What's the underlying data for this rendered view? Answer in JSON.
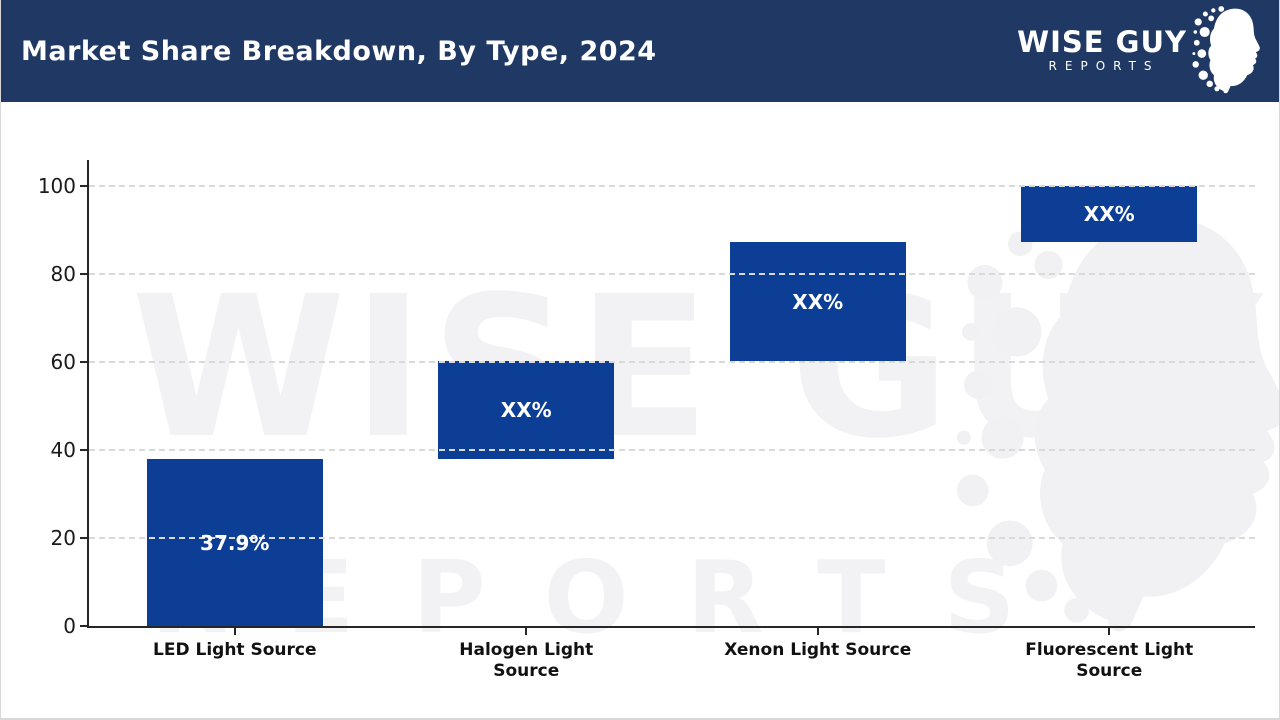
{
  "header": {
    "title": "Market Share Breakdown, By Type, 2024",
    "logo": {
      "name_top": "WISE GUY",
      "name_bottom": "REPORTS"
    }
  },
  "watermark": {
    "line1": "WISE GUY",
    "line2": "REPORTS"
  },
  "colors": {
    "header_bg": "#1f3864",
    "bar_fill": "#0b3e94",
    "axis": "#262626",
    "gridline": "#d9d9d9",
    "bar_label_text": "#ffffff",
    "tick_label_text": "#1a1a1a",
    "watermark": "#f2f2f4"
  },
  "chart_data": {
    "type": "bar",
    "subtype": "waterfall-stepped-segments",
    "title": "Market Share Breakdown, By Type, 2024",
    "xlabel": "",
    "ylabel": "",
    "ylim": [
      0,
      100
    ],
    "yticks": [
      0,
      20,
      40,
      60,
      80,
      100
    ],
    "grid": "horizontal dashed, drawn above bars",
    "legend": "none",
    "categories": [
      "LED Light Source",
      "Halogen Light Source",
      "Xenon Light Source",
      "Fluorescent Light Source"
    ],
    "category_label_lines": [
      [
        "LED Light Source"
      ],
      [
        "Halogen Light",
        "Source"
      ],
      [
        "Xenon Light Source"
      ],
      [
        "Fluorescent Light",
        "Source"
      ]
    ],
    "segments": [
      {
        "category": "LED Light Source",
        "start": 0,
        "end": 37.9,
        "label": "37.9%"
      },
      {
        "category": "Halogen Light Source",
        "start": 37.9,
        "end": 60.3,
        "label": "XX%"
      },
      {
        "category": "Xenon Light Source",
        "start": 60.3,
        "end": 87.2,
        "label": "XX%"
      },
      {
        "category": "Fluorescent Light Source",
        "start": 87.2,
        "end": 100,
        "label": "XX%"
      }
    ]
  }
}
